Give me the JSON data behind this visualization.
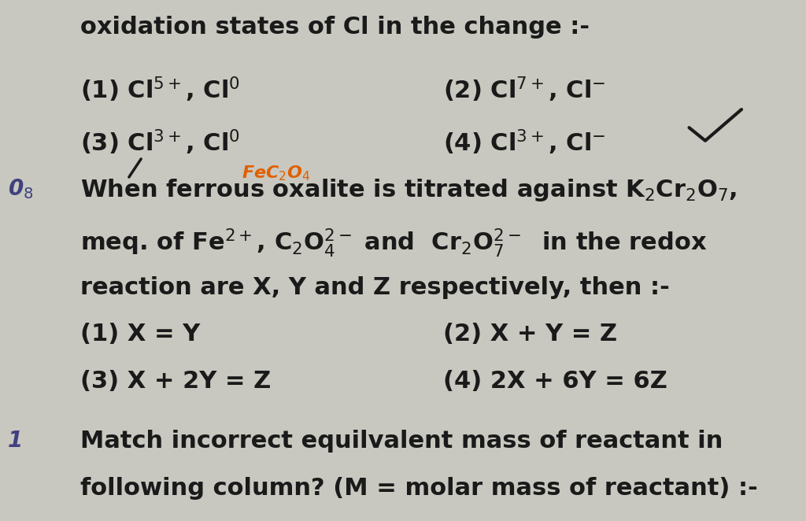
{
  "bg_color": "#c8c8c0",
  "text_color": "#1a1a1a",
  "title_line": "oxidation states of Cl in the change :-",
  "opt1_1": "(1) Cl$^{5+}$, Cl$^{0}$",
  "opt1_2": "(2) Cl$^{7+}$, Cl$^{-}$",
  "opt1_3": "(3) Cl$^{3+}$, Cl$^{0}$",
  "opt1_4": "(4) Cl$^{3+}$, Cl$^{-}$",
  "q2_annotation": "FeC$_2$O$_4$",
  "q2_line1": "When ferrous oxalite is titrated against K$_2$Cr$_2$O$_7$,",
  "q2_line2": "meq. of Fe$^{2+}$, C$_2$O$_4^{2-}$ and  Cr$_2$O$_7^{2-}$  in the redox",
  "q2_line3": "reaction are X, Y and Z respectively, then :-",
  "opt2_1": "(1) X = Y",
  "opt2_2": "(2) X + Y = Z",
  "opt2_3": "(3) X + 2Y = Z",
  "opt2_4": "(4) 2X + 6Y = 6Z",
  "q3_line1": "Match incorrect equilvalent mass of reactant in",
  "q3_line2": "following column? (M = molar mass of reactant) :-",
  "font_size_main": 22,
  "font_size_annot": 16,
  "annotation_color": "#e06000",
  "label_color": "#404080"
}
